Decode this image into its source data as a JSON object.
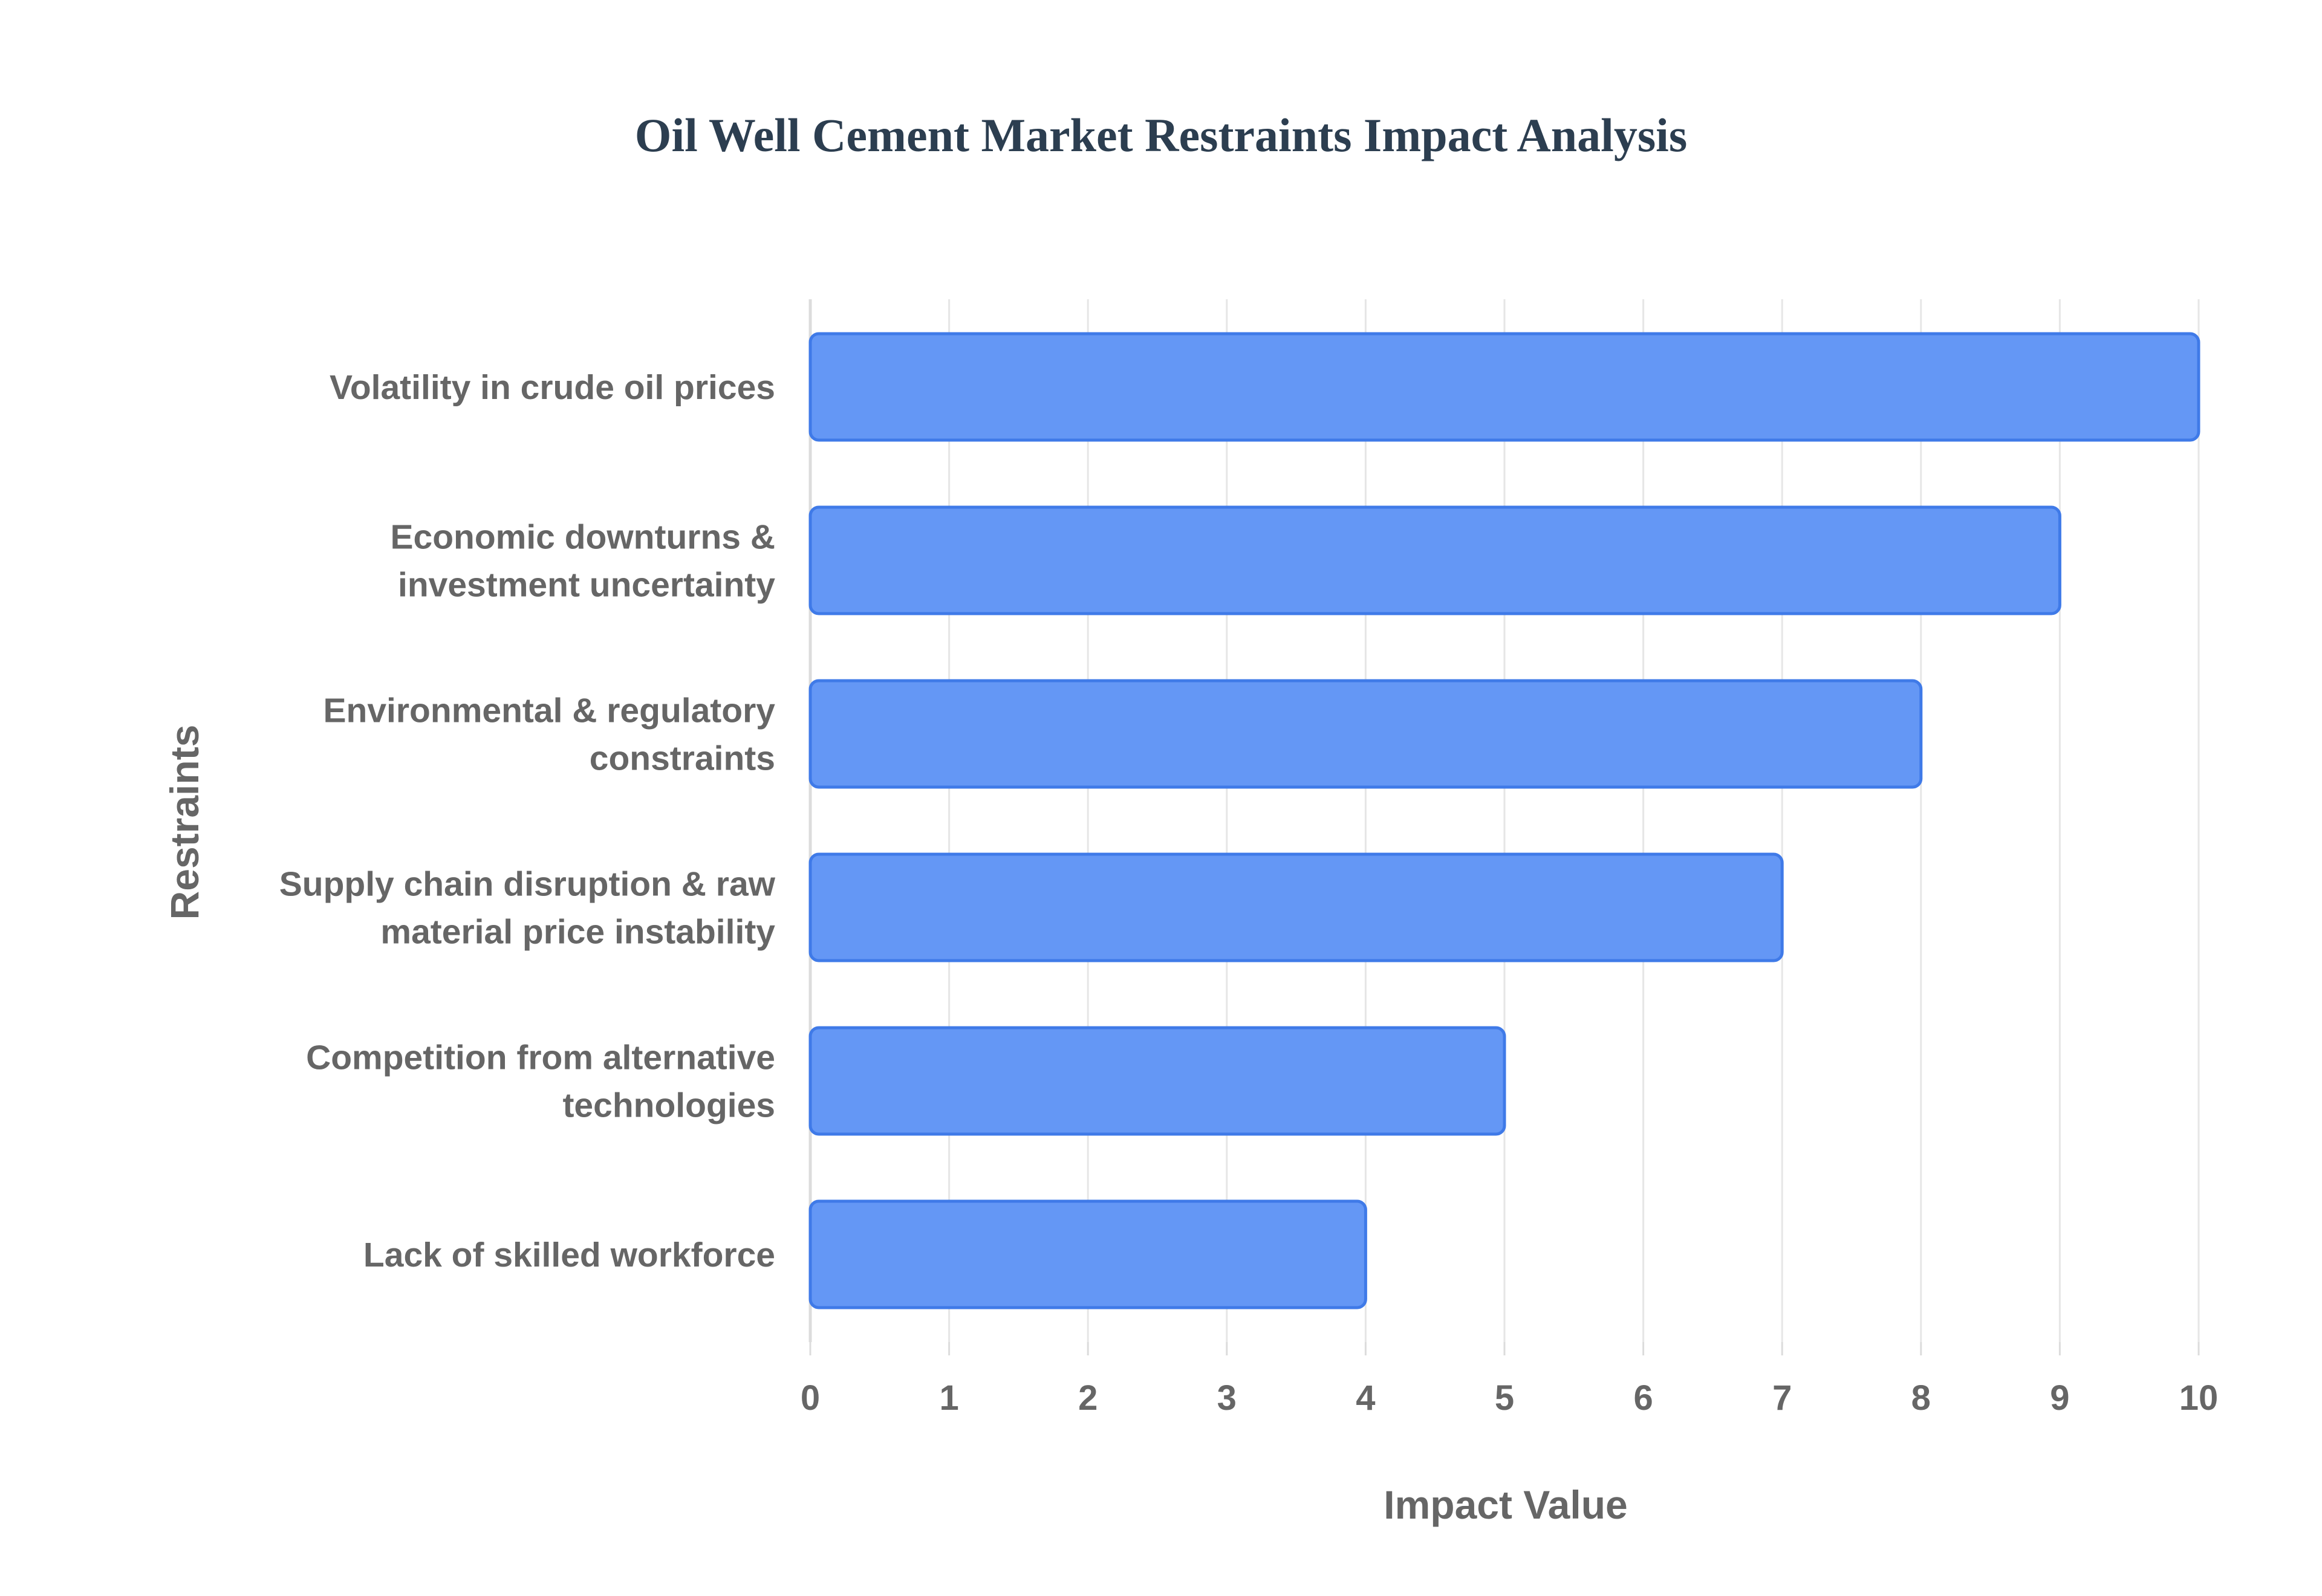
{
  "chart_data": {
    "type": "bar",
    "orientation": "horizontal",
    "title": "Oil Well Cement Market Restraints Impact Analysis",
    "xlabel": "Impact Value",
    "ylabel": "Restraints",
    "categories": [
      [
        "Volatility in crude oil prices"
      ],
      [
        "Economic downturns &",
        "investment uncertainty"
      ],
      [
        "Environmental & regulatory",
        "constraints"
      ],
      [
        "Supply chain disruption & raw",
        "material price instability"
      ],
      [
        "Competition from alternative",
        "technologies"
      ],
      [
        "Lack of skilled workforce"
      ]
    ],
    "values": [
      10,
      9,
      8,
      7,
      5,
      4
    ],
    "xlim": [
      0,
      10
    ],
    "xticks": [
      "0",
      "1",
      "2",
      "3",
      "4",
      "5",
      "6",
      "7",
      "8",
      "9",
      "10"
    ],
    "grid": true,
    "legend": "none"
  },
  "colors": {
    "bar_fill": "#6497f5",
    "bar_stroke": "#3f7ae8",
    "grid": "#e6e6e6",
    "axis": "#dcdcdc",
    "title": "#2c3e50",
    "label": "#666666"
  }
}
